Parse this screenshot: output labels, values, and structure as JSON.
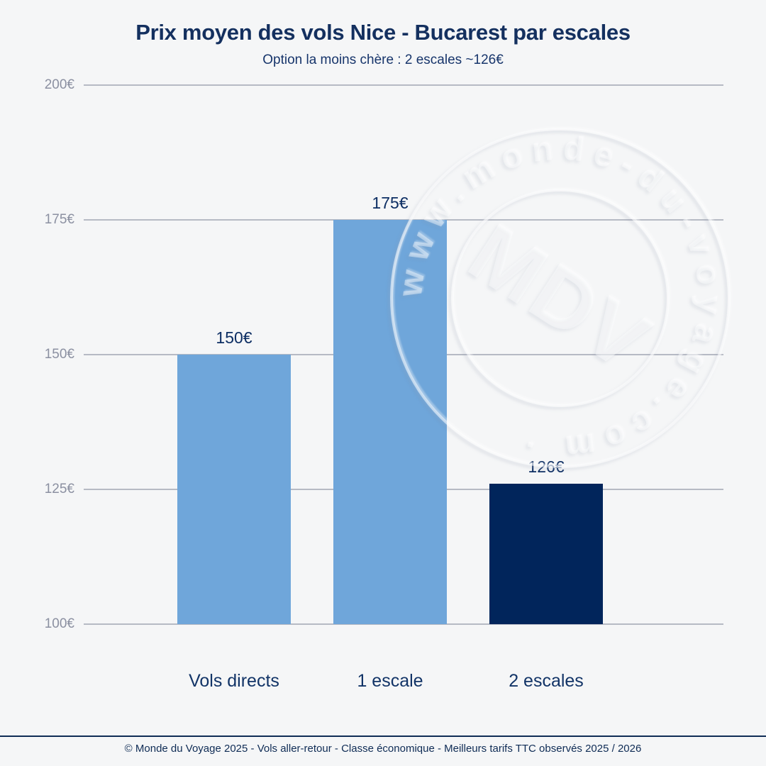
{
  "header": {
    "title": "Prix moyen des vols Nice - Bucarest par escales",
    "subtitle": "Option la moins chère : 2 escales ~126€"
  },
  "chart_data": {
    "type": "bar",
    "title": "Prix moyen des vols Nice - Bucarest par escales",
    "subtitle": "Option la moins chère : 2 escales ~126€",
    "categories": [
      "Vols directs",
      "1 escale",
      "2 escales"
    ],
    "values": [
      150,
      175,
      126
    ],
    "value_labels": [
      "150€",
      "175€",
      "126€"
    ],
    "bar_colors": [
      "#6fa6da",
      "#6fa6da",
      "#01255b"
    ],
    "ylim": [
      100,
      200
    ],
    "yticks": [
      {
        "value": 100,
        "label": "100€"
      },
      {
        "value": 125,
        "label": "125€"
      },
      {
        "value": 150,
        "label": "150€"
      },
      {
        "value": 175,
        "label": "175€"
      },
      {
        "value": 200,
        "label": "200€"
      }
    ],
    "grid": true,
    "legend": false,
    "xlabel": "",
    "ylabel": ""
  },
  "watermark": {
    "ring_text": "www.monde-du-voyage.com ·",
    "center_text": "MDV"
  },
  "footer": {
    "text": "© Monde du Voyage 2025 - Vols aller-retour - Classe économique - Meilleurs tarifs TTC observés 2025 / 2026"
  },
  "colors": {
    "background": "#f5f6f7",
    "title": "#14305f",
    "subtitle": "#17356b",
    "axis_tick": "#8b90a1",
    "gridline": "#b6bac4",
    "value_label": "#0d2e63",
    "category_label": "#123467",
    "bar_light_blue": "#6fa6da",
    "bar_dark_navy": "#01255b",
    "footer": "#0f2c55"
  }
}
